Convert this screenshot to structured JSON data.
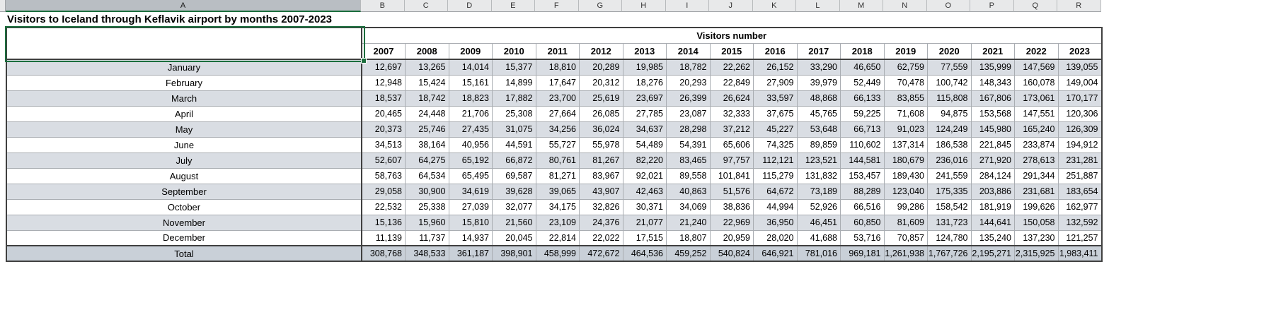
{
  "sheet": {
    "column_letters": [
      "A",
      "B",
      "C",
      "D",
      "E",
      "F",
      "G",
      "H",
      "I",
      "J",
      "K",
      "L",
      "M",
      "N",
      "O",
      "P",
      "Q",
      "R"
    ]
  },
  "title": "Visitors to Iceland through Keflavik airport by months 2007-2023",
  "table": {
    "group_header": "Visitors number",
    "years": [
      "2007",
      "2008",
      "2009",
      "2010",
      "2011",
      "2012",
      "2013",
      "2014",
      "2015",
      "2016",
      "2017",
      "2018",
      "2019",
      "2020",
      "2021",
      "2022",
      "2023"
    ],
    "rows": [
      {
        "label": "January",
        "values": [
          "12,697",
          "13,265",
          "14,014",
          "15,377",
          "18,810",
          "20,289",
          "19,985",
          "18,782",
          "22,262",
          "26,152",
          "33,290",
          "46,650",
          "62,759",
          "77,559",
          "135,999",
          "147,569",
          "139,055"
        ]
      },
      {
        "label": "February",
        "values": [
          "12,948",
          "15,424",
          "15,161",
          "14,899",
          "17,647",
          "20,312",
          "18,276",
          "20,293",
          "22,849",
          "27,909",
          "39,979",
          "52,449",
          "70,478",
          "100,742",
          "148,343",
          "160,078",
          "149,004"
        ]
      },
      {
        "label": "March",
        "values": [
          "18,537",
          "18,742",
          "18,823",
          "17,882",
          "23,700",
          "25,619",
          "23,697",
          "26,399",
          "26,624",
          "33,597",
          "48,868",
          "66,133",
          "83,855",
          "115,808",
          "167,806",
          "173,061",
          "170,177"
        ]
      },
      {
        "label": "April",
        "values": [
          "20,465",
          "24,448",
          "21,706",
          "25,308",
          "27,664",
          "26,085",
          "27,785",
          "23,087",
          "32,333",
          "37,675",
          "45,765",
          "59,225",
          "71,608",
          "94,875",
          "153,568",
          "147,551",
          "120,306"
        ]
      },
      {
        "label": "May",
        "values": [
          "20,373",
          "25,746",
          "27,435",
          "31,075",
          "34,256",
          "36,024",
          "34,637",
          "28,298",
          "37,212",
          "45,227",
          "53,648",
          "66,713",
          "91,023",
          "124,249",
          "145,980",
          "165,240",
          "126,309"
        ]
      },
      {
        "label": "June",
        "values": [
          "34,513",
          "38,164",
          "40,956",
          "44,591",
          "55,727",
          "55,978",
          "54,489",
          "54,391",
          "65,606",
          "74,325",
          "89,859",
          "110,602",
          "137,314",
          "186,538",
          "221,845",
          "233,874",
          "194,912"
        ]
      },
      {
        "label": "July",
        "values": [
          "52,607",
          "64,275",
          "65,192",
          "66,872",
          "80,761",
          "81,267",
          "82,220",
          "83,465",
          "97,757",
          "112,121",
          "123,521",
          "144,581",
          "180,679",
          "236,016",
          "271,920",
          "278,613",
          "231,281"
        ]
      },
      {
        "label": "August",
        "values": [
          "58,763",
          "64,534",
          "65,495",
          "69,587",
          "81,271",
          "83,967",
          "92,021",
          "89,558",
          "101,841",
          "115,279",
          "131,832",
          "153,457",
          "189,430",
          "241,559",
          "284,124",
          "291,344",
          "251,887"
        ]
      },
      {
        "label": "September",
        "values": [
          "29,058",
          "30,900",
          "34,619",
          "39,628",
          "39,065",
          "43,907",
          "42,463",
          "40,863",
          "51,576",
          "64,672",
          "73,189",
          "88,289",
          "123,040",
          "175,335",
          "203,886",
          "231,681",
          "183,654"
        ]
      },
      {
        "label": "October",
        "values": [
          "22,532",
          "25,338",
          "27,039",
          "32,077",
          "34,175",
          "32,826",
          "30,371",
          "34,069",
          "38,836",
          "44,994",
          "52,926",
          "66,516",
          "99,286",
          "158,542",
          "181,919",
          "199,626",
          "162,977"
        ]
      },
      {
        "label": "November",
        "values": [
          "15,136",
          "15,960",
          "15,810",
          "21,560",
          "23,109",
          "24,376",
          "21,077",
          "21,240",
          "22,969",
          "36,950",
          "46,451",
          "60,850",
          "81,609",
          "131,723",
          "144,641",
          "150,058",
          "132,592"
        ]
      },
      {
        "label": "December",
        "values": [
          "11,139",
          "11,737",
          "14,937",
          "20,045",
          "22,814",
          "22,022",
          "17,515",
          "18,807",
          "20,959",
          "28,020",
          "41,688",
          "53,716",
          "70,857",
          "124,780",
          "135,240",
          "137,230",
          "121,257"
        ]
      }
    ],
    "total": {
      "label": "Total",
      "values": [
        "308,768",
        "348,533",
        "361,187",
        "398,901",
        "458,999",
        "472,672",
        "464,536",
        "459,252",
        "540,824",
        "646,921",
        "781,016",
        "969,181",
        "1,261,938",
        "1,767,726",
        "2,195,271",
        "2,315,925",
        "1,983,411"
      ]
    }
  },
  "colors": {
    "band": "#d9dde3",
    "total_band": "#c9d0d8",
    "selection": "#1b6e3d",
    "header_fill": "#e8e9ea",
    "selected_header_fill": "#b9bec3",
    "table_border": "#404040"
  }
}
